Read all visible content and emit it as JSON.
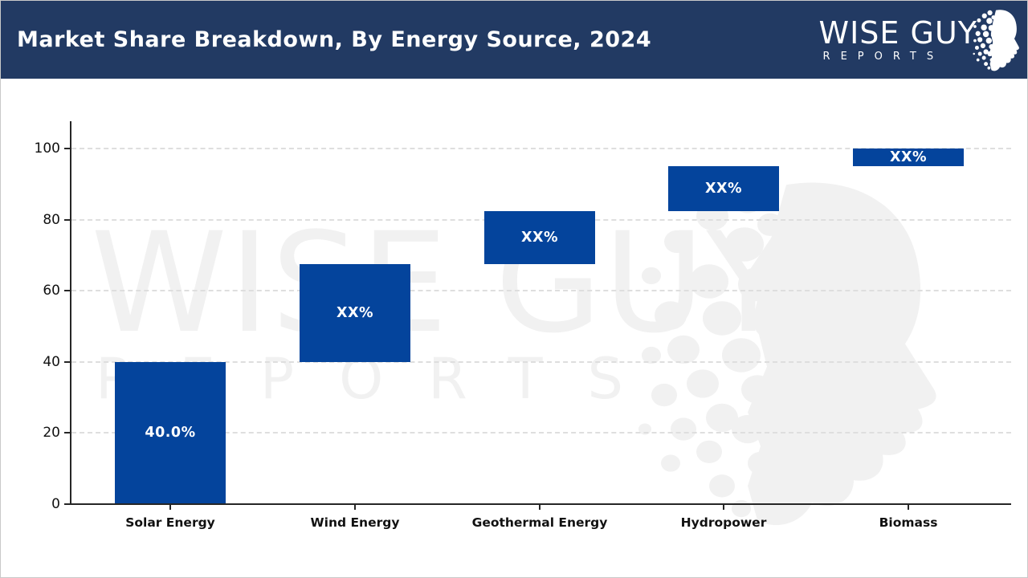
{
  "header": {
    "title": "Market Share Breakdown, By Energy Source, 2024",
    "logo": {
      "line1": "WISE GUY",
      "line2": "REPORTS"
    }
  },
  "watermark": {
    "line1": "WISE GUY",
    "line2": "REPORTS"
  },
  "icons": {
    "logo_face": "dotted-head-profile",
    "watermark_face": "dotted-head-profile"
  },
  "colors": {
    "header_bg": "#223a63",
    "bar_blue": "#04449c",
    "axis": "#262626",
    "gridline": "#dedede",
    "watermark": "#f1f1f1",
    "label_text": "#ffffff"
  },
  "chart_data": {
    "type": "bar",
    "subtype": "waterfall",
    "title": "Market Share Breakdown, By Energy Source, 2024",
    "xlabel": "",
    "ylabel": "",
    "categories": [
      "Solar Energy",
      "Wind Energy",
      "Geothermal Energy",
      "Hydropower",
      "Biomass"
    ],
    "segments": [
      {
        "category": "Solar Energy",
        "start": 0,
        "end": 40,
        "label": "40.0%"
      },
      {
        "category": "Wind Energy",
        "start": 40,
        "end": 67.5,
        "label": "XX%"
      },
      {
        "category": "Geothermal Energy",
        "start": 67.5,
        "end": 82.5,
        "label": "XX%"
      },
      {
        "category": "Hydropower",
        "start": 82.5,
        "end": 95,
        "label": "XX%"
      },
      {
        "category": "Biomass",
        "start": 95,
        "end": 100,
        "label": "XX%"
      }
    ],
    "yticks": [
      0,
      20,
      40,
      60,
      80,
      100
    ],
    "ylim": [
      0,
      105
    ],
    "grid": "horizontal-dashed",
    "legend": "none",
    "bar_color": "#04449c"
  }
}
